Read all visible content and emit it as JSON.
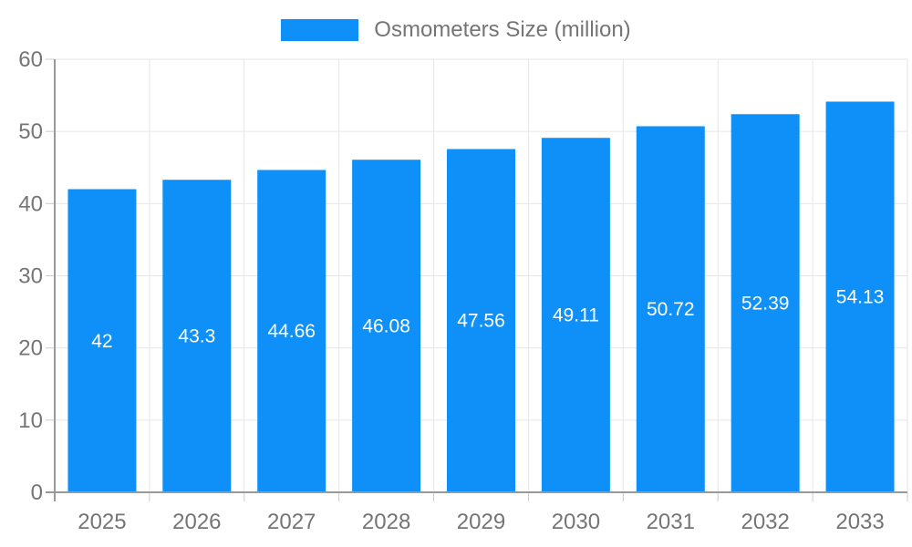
{
  "chart_data": {
    "type": "bar",
    "title": "Osmometers Size (million)",
    "series_label": "Osmometers Size (million)",
    "categories": [
      "2025",
      "2026",
      "2027",
      "2028",
      "2029",
      "2030",
      "2031",
      "2032",
      "2033"
    ],
    "values": [
      42,
      43.3,
      44.66,
      46.08,
      47.56,
      49.11,
      50.72,
      52.39,
      54.13
    ],
    "value_labels": [
      "42",
      "43.3",
      "44.66",
      "46.08",
      "47.56",
      "49.11",
      "50.72",
      "52.39",
      "54.13"
    ],
    "ylim": [
      0,
      60
    ],
    "yticks": [
      0,
      10,
      20,
      30,
      40,
      50,
      60
    ],
    "grid": true,
    "legend_position": "top",
    "colors": {
      "bar": "#0e90f8",
      "grid": "#e6e6e6",
      "axis": "#999999",
      "tick": "#cccccc",
      "tick_label": "#757575",
      "value_label": "#ffffff",
      "background": "#ffffff"
    }
  }
}
